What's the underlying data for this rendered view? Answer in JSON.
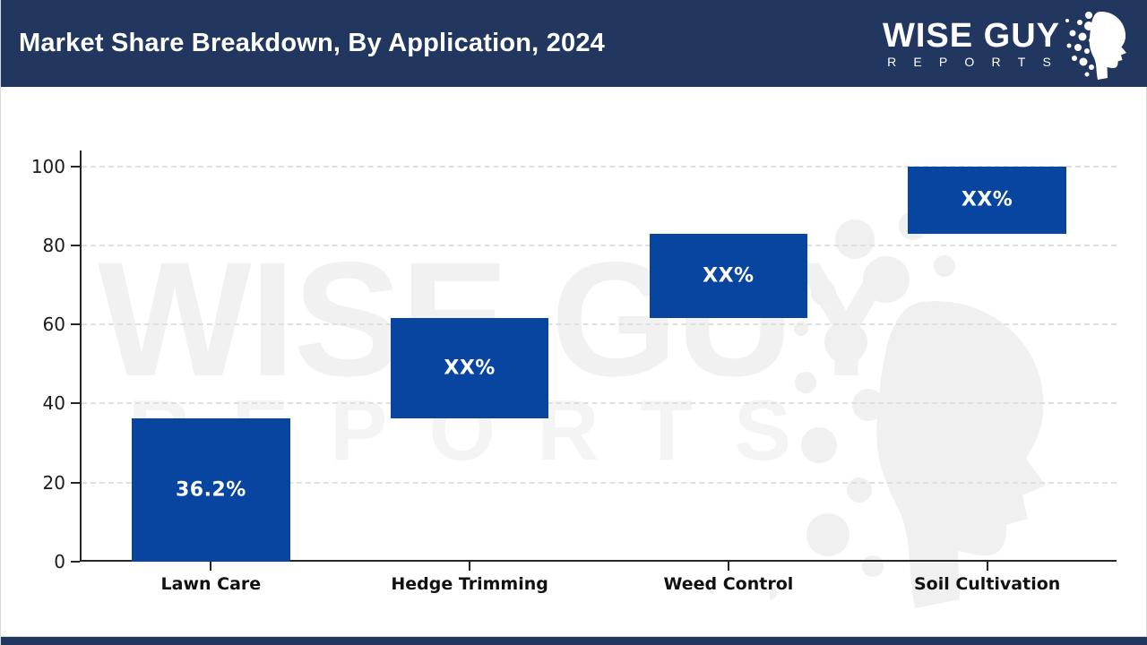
{
  "header": {
    "title": "Market Share Breakdown, By Application, 2024",
    "logo": {
      "wordmark": "WISE GUY",
      "subtext": "REPORTS"
    },
    "background_color": "#22375f"
  },
  "watermark": {
    "line1": "WISE GUY",
    "line2": "REPORTS"
  },
  "footer": {
    "background_color": "#22375f"
  },
  "colors": {
    "bar": "#0745a0",
    "bar_label": "#ffffff",
    "axis": "#262626",
    "gridline": "#e0e0e0",
    "tick_text": "#1a1a1a",
    "header_navy": "#22375f",
    "watermark_gray": "#f1f1f1"
  },
  "chart_data": {
    "type": "bar",
    "subtype": "waterfall",
    "title": "Market Share Breakdown, By Application, 2024",
    "categories": [
      "Lawn Care",
      "Hedge Trimming",
      "Weed Control",
      "Soil Cultivation"
    ],
    "segments": [
      {
        "category": "Lawn Care",
        "start": 0,
        "end": 36.2,
        "value": 36.2,
        "label": "36.2%"
      },
      {
        "category": "Hedge Trimming",
        "start": 36.2,
        "end": 61.6,
        "value": 25.4,
        "label": "XX%"
      },
      {
        "category": "Weed Control",
        "start": 61.6,
        "end": 83.0,
        "value": 21.4,
        "label": "XX%"
      },
      {
        "category": "Soil Cultivation",
        "start": 83.0,
        "end": 100.0,
        "value": 17.0,
        "label": "XX%"
      }
    ],
    "y_ticks": [
      0,
      20,
      40,
      60,
      80,
      100
    ],
    "ylim": [
      0,
      104
    ],
    "xlabel": "",
    "ylabel": "",
    "legend": null,
    "grid": "horizontal-dashed",
    "bar_color": "#0745a0",
    "label_color": "#ffffff"
  }
}
